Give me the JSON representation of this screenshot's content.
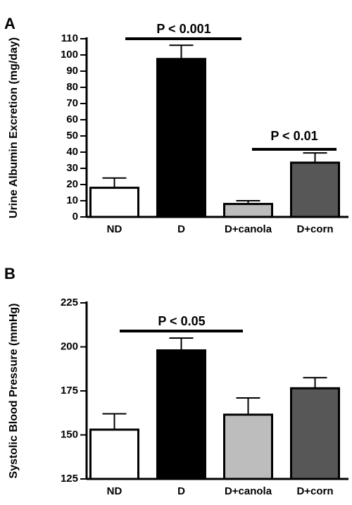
{
  "chart_data": [
    {
      "type": "bar",
      "panel": "A",
      "y_label": "Urine Albumin Excretion (mg/day)",
      "categories": [
        "ND",
        "D",
        "D+canola",
        "D+corn"
      ],
      "values": [
        18,
        97.5,
        8,
        33.5
      ],
      "errors": [
        6,
        8.5,
        2,
        6
      ],
      "colors": [
        "#ffffff",
        "#000000",
        "#bdbdbd",
        "#575757"
      ],
      "ylim": [
        0,
        110
      ],
      "yticks": [
        0,
        10,
        20,
        30,
        40,
        50,
        60,
        70,
        80,
        90,
        100,
        110
      ],
      "annotations": [
        "P < 0.001",
        "P < 0.01"
      ]
    },
    {
      "type": "bar",
      "panel": "B",
      "y_label": "Systolic Blood Pressure (mmHg)",
      "categories": [
        "ND",
        "D",
        "D+canola",
        "D+corn"
      ],
      "values": [
        153,
        198,
        161.5,
        176.5
      ],
      "errors": [
        9,
        7,
        9.5,
        6
      ],
      "colors": [
        "#ffffff",
        "#000000",
        "#bdbdbd",
        "#575757"
      ],
      "ylim": [
        125,
        225
      ],
      "yticks": [
        125,
        150,
        175,
        200,
        225
      ],
      "annotations": [
        "P < 0.05"
      ]
    }
  ]
}
